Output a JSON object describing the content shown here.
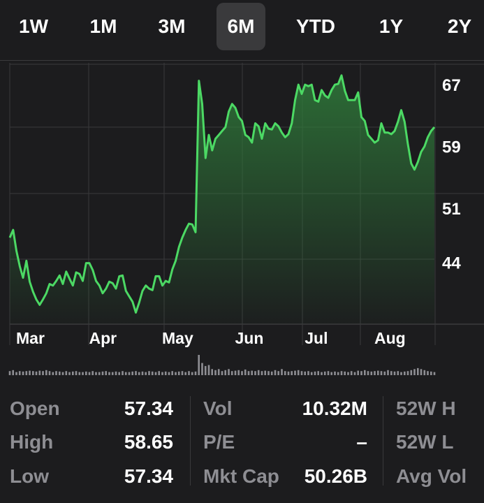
{
  "range_tabs": {
    "items": [
      "1W",
      "1M",
      "3M",
      "6M",
      "YTD",
      "1Y",
      "2Y"
    ],
    "selected": "6M"
  },
  "chart_data": {
    "type": "area",
    "x": [
      0,
      1,
      2,
      3,
      4,
      5,
      6,
      7,
      8,
      9,
      10,
      11,
      12,
      13,
      14,
      15,
      16,
      17,
      18,
      19,
      20,
      21,
      22,
      23,
      24,
      25,
      26,
      27,
      28,
      29,
      30,
      31,
      32,
      33,
      34,
      35,
      36,
      37,
      38,
      39,
      40,
      41,
      42,
      43,
      44,
      45,
      46,
      47,
      48,
      49,
      50,
      51,
      52,
      53,
      54,
      55,
      56,
      57,
      58,
      59,
      60,
      61,
      62,
      63,
      64,
      65,
      66,
      67,
      68,
      69,
      70,
      71,
      72,
      73,
      74,
      75,
      76,
      77,
      78,
      79,
      80,
      81,
      82,
      83,
      84,
      85,
      86,
      87,
      88,
      89,
      90,
      91,
      92,
      93,
      94,
      95,
      96,
      97,
      98,
      99,
      100,
      101,
      102,
      103,
      104,
      105,
      106,
      107,
      108,
      109,
      110,
      111,
      112,
      113,
      114,
      115,
      116,
      117,
      118,
      119,
      120,
      121,
      122,
      123,
      124,
      125,
      126,
      127,
      128
    ],
    "values": [
      47.2,
      48.2,
      45.5,
      43.5,
      42.0,
      44.2,
      41.5,
      40.2,
      39.2,
      38.5,
      39.2,
      40.0,
      41.2,
      41.0,
      41.6,
      42.3,
      41.2,
      42.8,
      41.9,
      41.0,
      42.7,
      42.5,
      41.6,
      43.9,
      43.9,
      43.0,
      41.6,
      41.0,
      40.0,
      40.6,
      41.5,
      41.3,
      40.6,
      42.2,
      42.3,
      40.3,
      39.6,
      38.9,
      37.5,
      38.8,
      40.3,
      41.0,
      40.6,
      40.4,
      42.2,
      42.2,
      41.0,
      41.6,
      41.4,
      43.1,
      44.2,
      46.0,
      47.2,
      48.2,
      49.0,
      48.9,
      47.9,
      67.5,
      64.5,
      57.5,
      60.5,
      58.5,
      60.0,
      60.5,
      61.0,
      61.5,
      63.5,
      64.5,
      64.0,
      62.8,
      62.3,
      60.5,
      60.2,
      59.5,
      62.0,
      61.6,
      60.0,
      62.0,
      61.3,
      61.2,
      62.0,
      61.6,
      60.8,
      60.2,
      60.6,
      62.0,
      65.0,
      67.0,
      65.8,
      67.0,
      66.8,
      67.0,
      65.0,
      64.8,
      66.3,
      65.6,
      65.3,
      66.3,
      67.0,
      67.1,
      68.2,
      66.2,
      65.0,
      65.0,
      65.0,
      66.0,
      62.8,
      62.3,
      60.5,
      60.0,
      59.5,
      59.8,
      62.0,
      60.8,
      60.8,
      60.6,
      61.0,
      62.2,
      63.7,
      62.2,
      59.3,
      56.8,
      56.0,
      57.0,
      58.3,
      59.0,
      60.2,
      61.0,
      61.5
    ],
    "x_ticks": [
      {
        "label": "Mar",
        "x": 0
      },
      {
        "label": "Apr",
        "x": 22
      },
      {
        "label": "May",
        "x": 44
      },
      {
        "label": "Jun",
        "x": 66
      },
      {
        "label": "Jul",
        "x": 87
      },
      {
        "label": "Aug",
        "x": 108
      }
    ],
    "y_ticks": [
      67,
      59,
      51,
      44
    ],
    "ylim": [
      36,
      70
    ],
    "volume": [
      0.2,
      0.25,
      0.15,
      0.2,
      0.18,
      0.2,
      0.22,
      0.2,
      0.18,
      0.22,
      0.2,
      0.25,
      0.2,
      0.15,
      0.2,
      0.18,
      0.15,
      0.2,
      0.15,
      0.18,
      0.2,
      0.15,
      0.15,
      0.18,
      0.15,
      0.2,
      0.15,
      0.15,
      0.18,
      0.2,
      0.15,
      0.15,
      0.18,
      0.15,
      0.2,
      0.15,
      0.15,
      0.18,
      0.2,
      0.15,
      0.18,
      0.15,
      0.2,
      0.18,
      0.15,
      0.2,
      0.15,
      0.18,
      0.15,
      0.2,
      0.15,
      0.18,
      0.2,
      0.15,
      0.2,
      0.15,
      0.18,
      1.0,
      0.6,
      0.45,
      0.5,
      0.3,
      0.25,
      0.3,
      0.2,
      0.25,
      0.3,
      0.2,
      0.22,
      0.25,
      0.2,
      0.28,
      0.2,
      0.22,
      0.2,
      0.25,
      0.2,
      0.22,
      0.2,
      0.18,
      0.25,
      0.2,
      0.3,
      0.2,
      0.18,
      0.2,
      0.22,
      0.25,
      0.2,
      0.18,
      0.2,
      0.15,
      0.18,
      0.2,
      0.15,
      0.18,
      0.2,
      0.15,
      0.18,
      0.15,
      0.2,
      0.18,
      0.15,
      0.2,
      0.15,
      0.22,
      0.2,
      0.25,
      0.2,
      0.18,
      0.2,
      0.22,
      0.2,
      0.18,
      0.25,
      0.2,
      0.18,
      0.2,
      0.15,
      0.18,
      0.2,
      0.25,
      0.3,
      0.35,
      0.3,
      0.25,
      0.2,
      0.18,
      0.15
    ],
    "colors": {
      "line": "#4cd964",
      "fill": "#2f7a3a",
      "grid": "#3a3a3c"
    }
  },
  "stats": {
    "col1": [
      {
        "label": "Open",
        "value": "57.34"
      },
      {
        "label": "High",
        "value": "58.65"
      },
      {
        "label": "Low",
        "value": "57.34"
      }
    ],
    "col2": [
      {
        "label": "Vol",
        "value": "10.32M"
      },
      {
        "label": "P/E",
        "value": "–"
      },
      {
        "label": "Mkt Cap",
        "value": "50.26B"
      }
    ],
    "col3": [
      {
        "label": "52W H"
      },
      {
        "label": "52W L"
      },
      {
        "label": "Avg Vol"
      }
    ]
  }
}
